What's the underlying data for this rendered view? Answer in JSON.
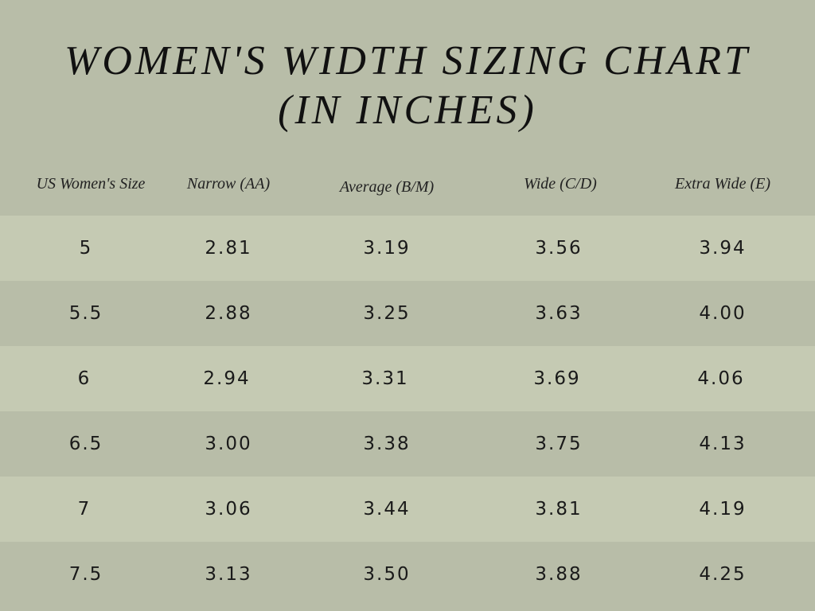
{
  "title_line1": "WOMEN'S WIDTH SIZING CHART",
  "title_line2": "(IN INCHES)",
  "colors": {
    "background": "#b8bda8",
    "row_light": "#c5cab3",
    "row_dark": "#b8bda8",
    "text": "#1a1a1a"
  },
  "chart_data": {
    "type": "table",
    "columns": [
      "US Women's Size",
      "Narrow (AA)",
      "Average (B/M)",
      "Wide (C/D)",
      "Extra Wide (E)"
    ],
    "rows": [
      [
        "5",
        "2.81",
        "3.19",
        "3.56",
        "3.94"
      ],
      [
        "5.5",
        "2.88",
        "3.25",
        "3.63",
        "4.00"
      ],
      [
        "6",
        "2.94",
        "3.31",
        "3.69",
        "4.06"
      ],
      [
        "6.5",
        "3.00",
        "3.38",
        "3.75",
        "4.13"
      ],
      [
        "7",
        "3.06",
        "3.44",
        "3.81",
        "4.19"
      ],
      [
        "7.5",
        "3.13",
        "3.50",
        "3.88",
        "4.25"
      ]
    ]
  }
}
